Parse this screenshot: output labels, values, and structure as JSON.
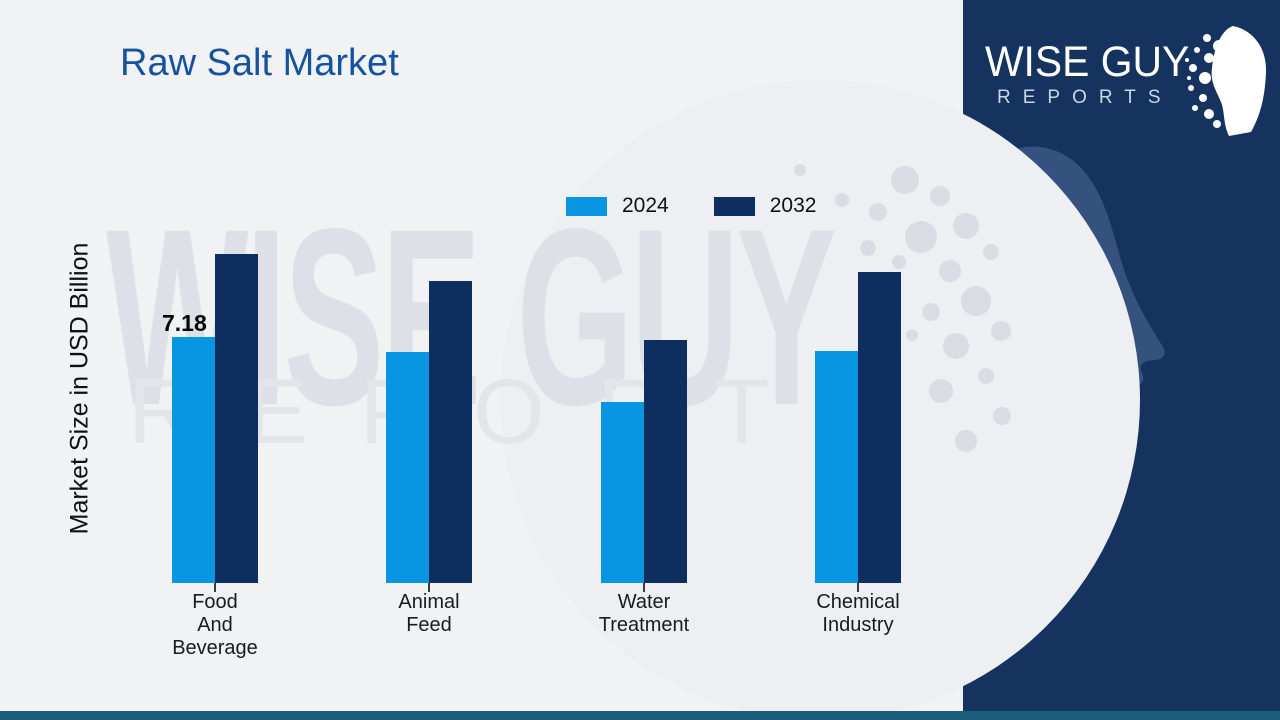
{
  "page": {
    "title": "Raw Salt Market",
    "background_watermark": {
      "line1": "WISE GUY",
      "line2": "REPORTS"
    }
  },
  "brand": {
    "name_line1": "WISE GUY",
    "name_line2": "REPORTS",
    "face_icon": "face-profile-dots-icon",
    "colors": {
      "navy_panel": "#16335f",
      "teal_footer": "#1c5f7d",
      "face_silhouette": "#35517e"
    }
  },
  "chart_data": {
    "type": "bar",
    "title": "Raw Salt Market",
    "ylabel": "Market Size in USD Billion",
    "categories": [
      "Food And Beverage",
      "Animal Feed",
      "Water Treatment",
      "Chemical Industry"
    ],
    "series": [
      {
        "name": "2024",
        "color": "#0895e1",
        "values": [
          7.18,
          6.74,
          5.28,
          6.77
        ]
      },
      {
        "name": "2032",
        "color": "#0f2e60",
        "values": [
          9.6,
          8.81,
          7.09,
          9.08
        ]
      }
    ],
    "data_labels": [
      {
        "series_index": 0,
        "category_index": 0,
        "text": "7.18"
      }
    ],
    "ylim": [
      0,
      10.5
    ],
    "grid": false,
    "y_axis_ticks_visible": false,
    "legend_position": "top-center"
  }
}
